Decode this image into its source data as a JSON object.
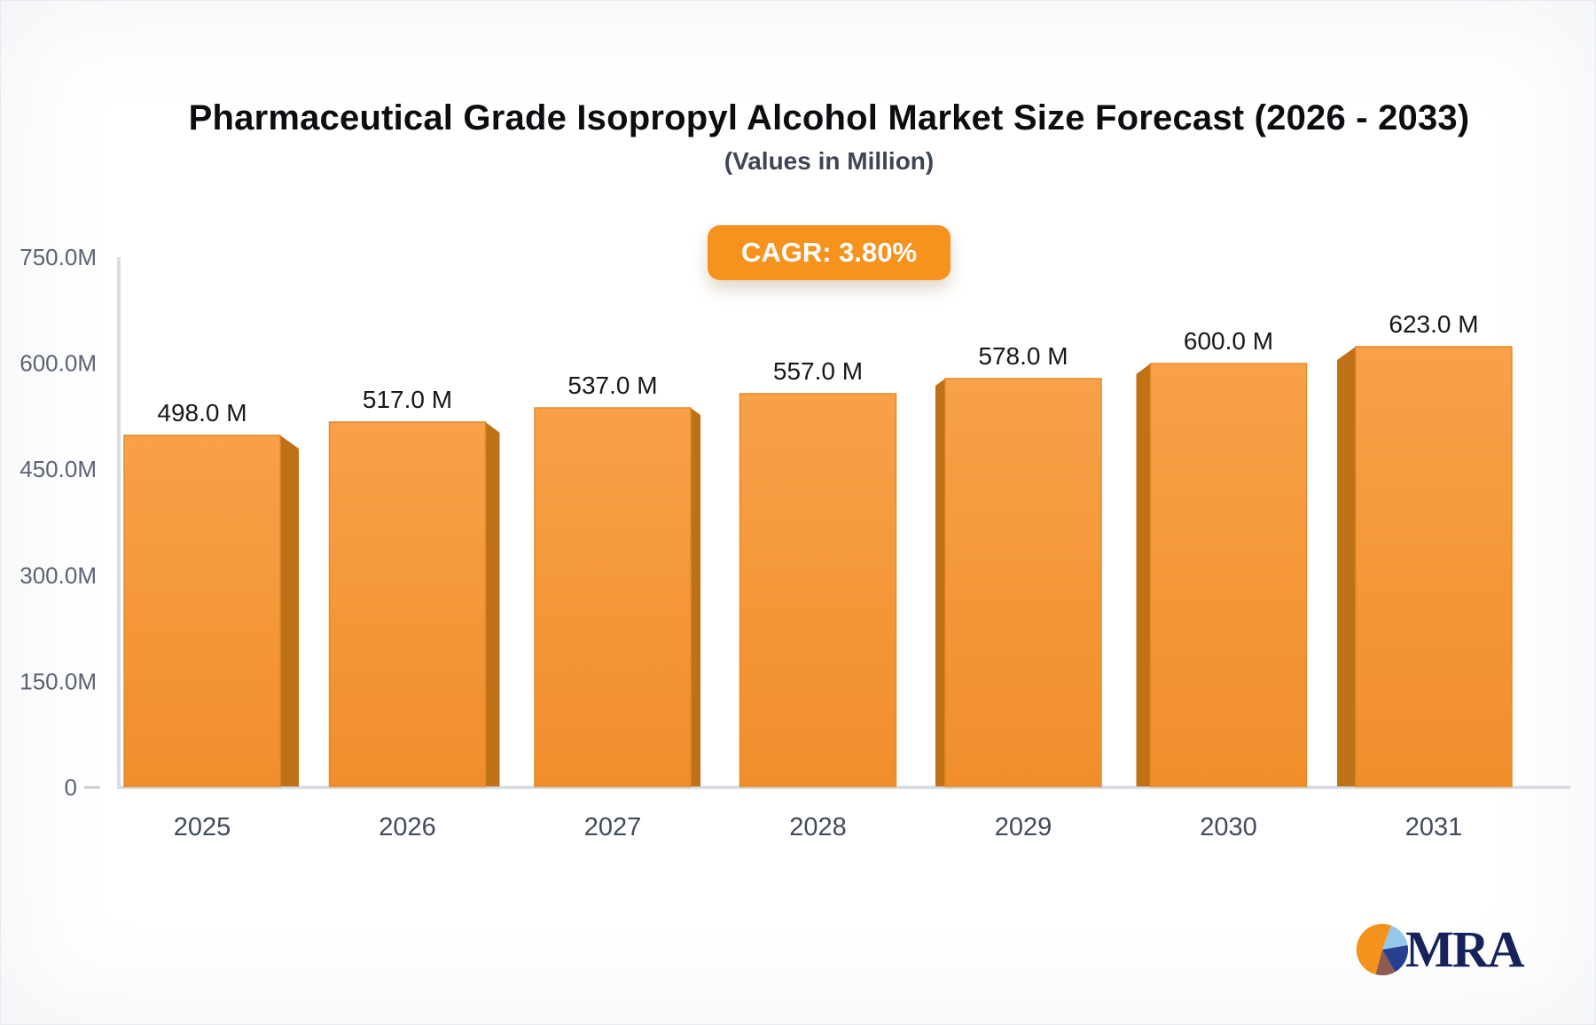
{
  "header": {
    "title": "Pharmaceutical Grade Isopropyl Alcohol Market Size Forecast (2026 - 2033)",
    "subtitle": "(Values in Million)",
    "badge": "CAGR: 3.80%"
  },
  "chart_data": {
    "type": "bar",
    "title": "Pharmaceutical Grade Isopropyl Alcohol Market Size Forecast (2026 - 2033)",
    "subtitle": "(Values in Million)",
    "cagr": "3.80%",
    "categories": [
      "2025",
      "2026",
      "2027",
      "2028",
      "2029",
      "2030",
      "2031"
    ],
    "values": [
      498,
      517,
      537,
      557,
      578,
      600,
      623
    ],
    "value_labels": [
      "498.0 M",
      "517.0 M",
      "537.0 M",
      "557.0 M",
      "578.0 M",
      "600.0 M",
      "623.0 M"
    ],
    "unit": "Million",
    "ylim": [
      0,
      750
    ],
    "y_ticks": [
      {
        "value": 750,
        "label": "750.0M"
      },
      {
        "value": 600,
        "label": "600.0M"
      },
      {
        "value": 450,
        "label": "450.0M"
      },
      {
        "value": 300,
        "label": "300.0M"
      },
      {
        "value": 150,
        "label": "150.0M"
      },
      {
        "value": 0,
        "label": "0"
      }
    ],
    "grid": false,
    "legend": false,
    "bar_style": "pseudo-3d, vanishing point at center bar"
  },
  "colors": {
    "bar_face_top": "#f8a149",
    "bar_face_bottom": "#f08e2b",
    "bar_edge": "#e08b2b",
    "bar_side": "#bf7118",
    "badge_bg": "#f6921e",
    "badge_text": "#ffffff",
    "axis_line": "#d9dce1",
    "tick_label": "#5a6372",
    "category_label": "#414b5a",
    "value_label": "#17181b",
    "title": "#0c0d10",
    "subtitle": "#3e4656"
  },
  "logo": {
    "text": "MRA",
    "pie": {
      "orange": "#f5921d",
      "light_blue": "#95c8e8",
      "navy": "#24408e",
      "maroon": "#8e5a50"
    },
    "text_color": "#16235a"
  }
}
